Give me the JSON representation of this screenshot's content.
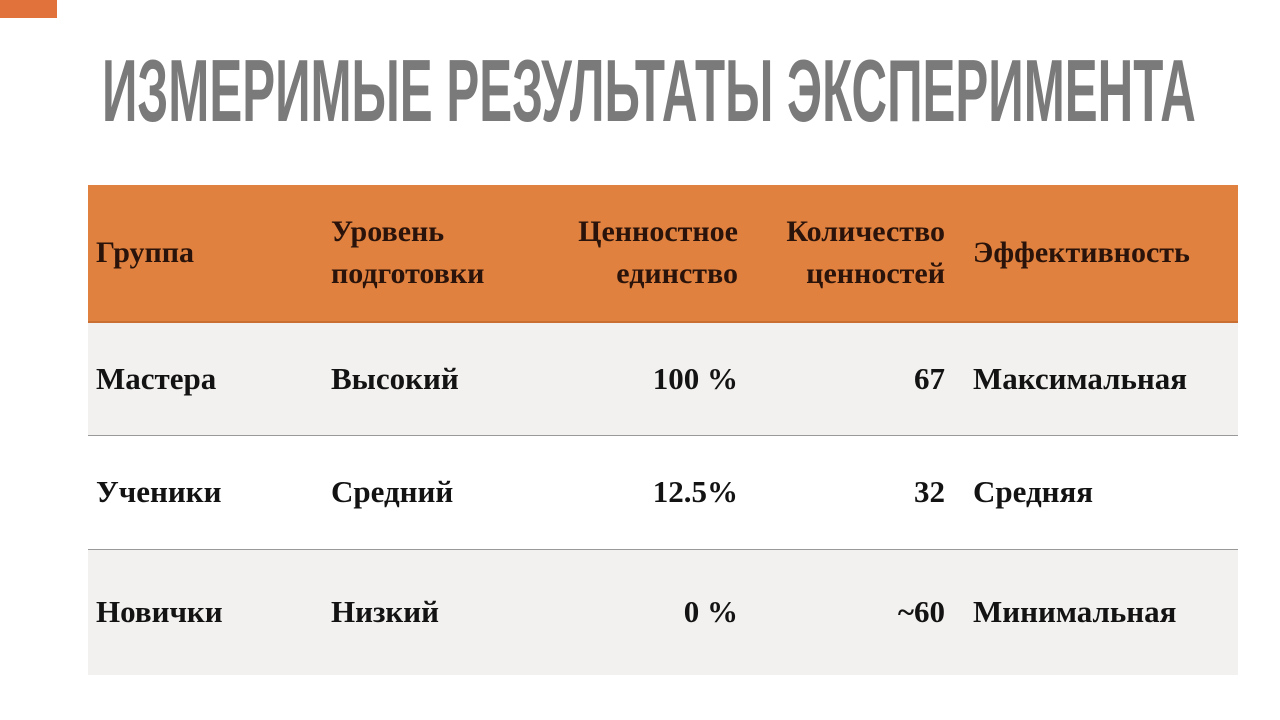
{
  "slide": {
    "title": "ИЗМЕРИМЫЕ РЕЗУЛЬТАТЫ ЭКСПЕРИМЕНТА"
  },
  "colors": {
    "accent_orange": "#e0813f",
    "corner_mark_orange": "#e2723c",
    "title_gray": "#7a7a7a",
    "alt_row_bg": "#f2f1ef",
    "header_text": "#2a130a",
    "body_text": "#131313"
  },
  "table": {
    "columns": [
      "Группа",
      "Уровень подготовки",
      "Ценностное единство",
      "Количество ценностей",
      "Эффективность"
    ],
    "rows": [
      {
        "cells": [
          "Мастера",
          "Высокий",
          "100 %",
          "67",
          "Максимальная"
        ]
      },
      {
        "cells": [
          "Ученики",
          "Средний",
          "12.5%",
          "32",
          "Средняя"
        ]
      },
      {
        "cells": [
          "Новички",
          "Низкий",
          "0 %",
          "~60",
          "Минимальная"
        ]
      }
    ]
  }
}
